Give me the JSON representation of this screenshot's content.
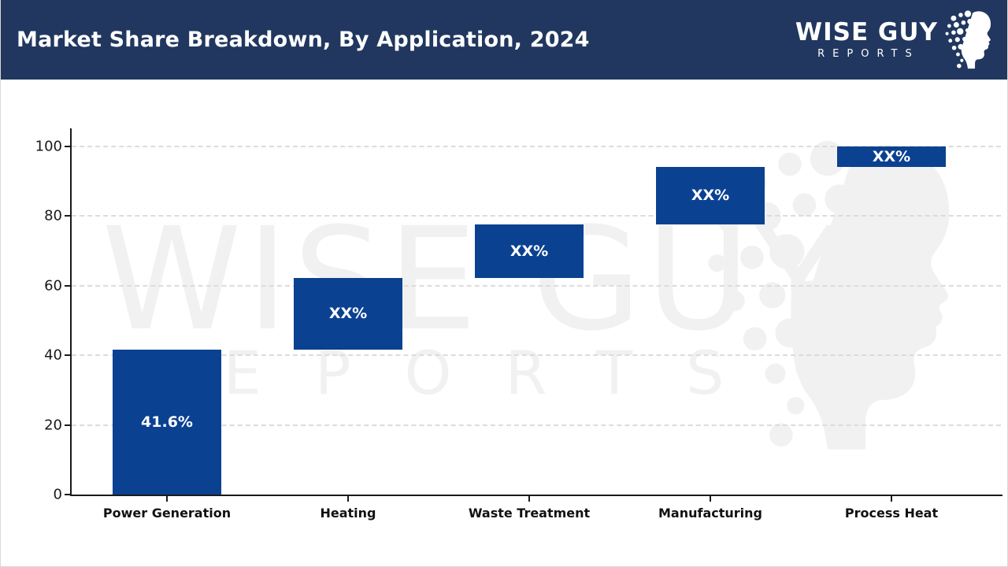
{
  "header": {
    "title": "Market Share Breakdown, By Application, 2024",
    "logo": {
      "name": "WISE GUY",
      "subtitle": "REPORTS"
    },
    "bg_color": "#21375f"
  },
  "watermark": {
    "line1": "WISE GUY",
    "line2": "REPORTS"
  },
  "colors": {
    "header_bg": "#21375f",
    "bar": "#0b4191",
    "bar_label": "#ffffff",
    "axis": "#1a1a1a",
    "gridline": "#dcdcdc",
    "watermark": "#f1f1f1"
  },
  "chart_data": {
    "type": "bar",
    "subtype": "waterfall",
    "title": "Market Share Breakdown, By Application, 2024",
    "categories": [
      "Power Generation",
      "Heating",
      "Waste Treatment",
      "Manufacturing",
      "Process Heat"
    ],
    "bars": [
      {
        "category": "Power Generation",
        "start": 0,
        "end": 41.6,
        "label": "41.6%"
      },
      {
        "category": "Heating",
        "start": 41.6,
        "end": 62.3,
        "label": "XX%"
      },
      {
        "category": "Waste Treatment",
        "start": 62.3,
        "end": 77.6,
        "label": "XX%"
      },
      {
        "category": "Manufacturing",
        "start": 77.6,
        "end": 94.2,
        "label": "XX%"
      },
      {
        "category": "Process Heat",
        "start": 94.2,
        "end": 100,
        "label": "XX%"
      }
    ],
    "y_ticks": [
      0,
      20,
      40,
      60,
      80,
      100
    ],
    "ylim": [
      0,
      105
    ],
    "xlabel": "",
    "ylabel": "",
    "grid": true,
    "grid_style": "dashed-horizontal",
    "legend": false,
    "bar_color": "#0b4191",
    "value_label_color": "#ffffff"
  }
}
